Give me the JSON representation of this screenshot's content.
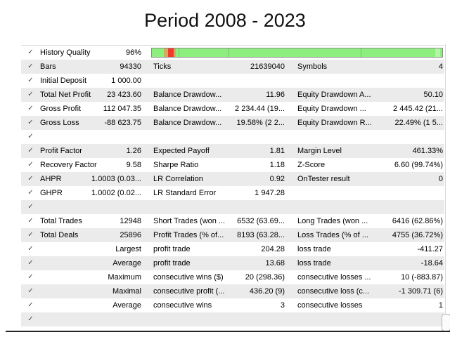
{
  "title": "Period 2008 - 2023",
  "icons": {
    "check": "✓"
  },
  "colors": {
    "row_stripe": "#ebebeb",
    "bar_green": "#8df07e",
    "bar_red": "#f2392e",
    "bar_orange": "#cfae5e",
    "bar_border": "#8a8a8a",
    "hairline": "#d9d9d9",
    "bottom_border": "#242424",
    "check": "#4d4d4d",
    "text": "#000000"
  },
  "progress": {
    "label": "96%"
  },
  "table": {
    "rows": [
      {
        "label1": "History Quality",
        "value1": "96%",
        "bar": true
      },
      {
        "label1": "Bars",
        "value1": "94330",
        "label2": "Ticks",
        "value2": "21639040",
        "label3": "Symbols",
        "value3": "4"
      },
      {
        "label1": "Initial Deposit",
        "value1": "1 000.00"
      },
      {
        "label1": "Total Net Profit",
        "value1": "23 423.60",
        "label2": "Balance Drawdow...",
        "value2": "11.96",
        "label3": "Equity Drawdown A...",
        "value3": "50.10"
      },
      {
        "label1": "Gross Profit",
        "value1": "112 047.35",
        "label2": "Balance Drawdow...",
        "value2": "2 234.44 (19...",
        "label3": "Equity Drawdown ...",
        "value3": "2 445.42 (21..."
      },
      {
        "label1": "Gross Loss",
        "value1": "-88 623.75",
        "label2": "Balance Drawdow...",
        "value2": "19.58% (2 2...",
        "label3": "Equity Drawdown R...",
        "value3": "22.49% (1 5..."
      },
      {},
      {
        "label1": "Profit Factor",
        "value1": "1.26",
        "label2": "Expected Payoff",
        "value2": "1.81",
        "label3": "Margin Level",
        "value3": "461.33%"
      },
      {
        "label1": "Recovery Factor",
        "value1": "9.58",
        "label2": "Sharpe Ratio",
        "value2": "1.18",
        "label3": "Z-Score",
        "value3": "6.60 (99.74%)"
      },
      {
        "label1": "AHPR",
        "value1": "1.0003 (0.03...",
        "label2": "LR Correlation",
        "value2": "0.92",
        "label3": "OnTester result",
        "value3": "0"
      },
      {
        "label1": "GHPR",
        "value1": "1.0002 (0.02...",
        "label2": "LR Standard Error",
        "value2": "1 947.28"
      },
      {},
      {
        "label1": "Total Trades",
        "value1": "12948",
        "label2": "Short Trades (won ...",
        "value2": "6532 (63.69...",
        "label3": "Long Trades (won ...",
        "value3": "6416 (62.86%)"
      },
      {
        "label1": "Total Deals",
        "value1": "25896",
        "label2": "Profit Trades (% of...",
        "value2": "8193 (63.28...",
        "label3": "Loss Trades (% of ...",
        "value3": "4755 (36.72%)"
      },
      {
        "value1": "Largest",
        "label2": "profit trade",
        "value2": "204.28",
        "label3": "loss trade",
        "value3": "-411.27"
      },
      {
        "value1": "Average",
        "label2": "profit trade",
        "value2": "13.68",
        "label3": "loss trade",
        "value3": "-18.64"
      },
      {
        "value1": "Maximum",
        "label2": "consecutive wins ($)",
        "value2": "20 (298.36)",
        "label3": "consecutive losses ...",
        "value3": "10 (-883.87)"
      },
      {
        "value1": "Maximal",
        "label2": "consecutive profit (...",
        "value2": "436.20 (9)",
        "label3": "consecutive loss (c...",
        "value3": "-1 309.71 (6)"
      },
      {
        "value1": "Average",
        "label2": "consecutive wins",
        "value2": "3",
        "label3": "consecutive losses",
        "value3": "1"
      },
      {}
    ]
  }
}
